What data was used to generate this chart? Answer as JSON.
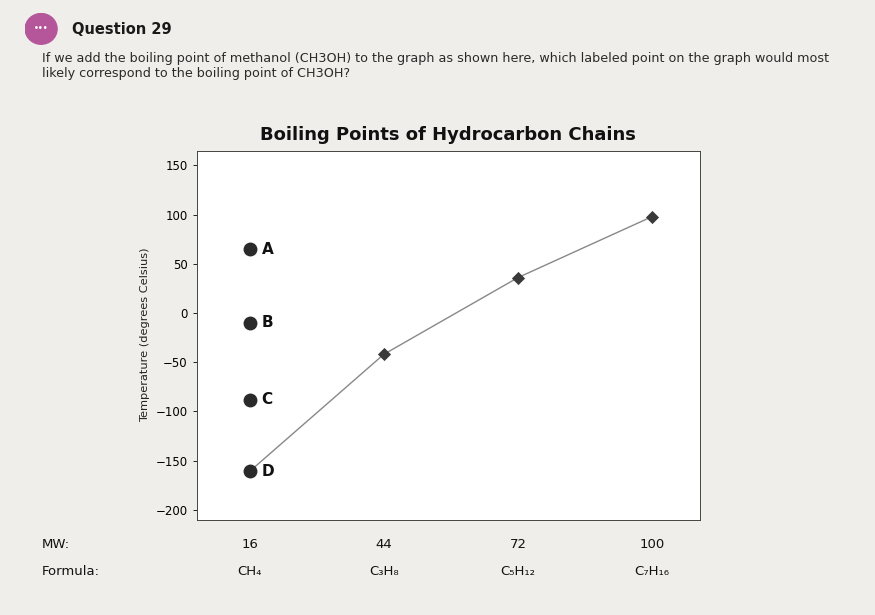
{
  "title": "Boiling Points of Hydrocarbon Chains",
  "ylabel": "Temperature (degrees Celsius)",
  "question_text": "Question 29",
  "question_body": "If we add the boiling point of methanol (CH3OH) to the graph as shown here, which labeled point on the graph would most\nlikely correspond to the boiling point of CH3OH?",
  "mw_labels": [
    "16",
    "44",
    "72",
    "100"
  ],
  "formula_labels": [
    "CH₄",
    "C₃H₈",
    "C₅H₁₂",
    "C₇H₁₆"
  ],
  "mw_values": [
    16,
    44,
    72,
    100
  ],
  "trend_temps": [
    -161,
    -42,
    36,
    98
  ],
  "labeled_points": {
    "A": {
      "mw": 16,
      "temp": 65
    },
    "B": {
      "mw": 16,
      "temp": -10
    },
    "C": {
      "mw": 16,
      "temp": -88
    },
    "D": {
      "mw": 16,
      "temp": -161
    }
  },
  "ylim": [
    -210,
    165
  ],
  "yticks": [
    -200,
    -150,
    -100,
    -50,
    0,
    50,
    100,
    150
  ],
  "background_color": "#f0eeea",
  "plot_bg_color": "#ffffff",
  "dot_color": "#2a2a2a",
  "diamond_color": "#3a3a3a",
  "line_color": "#888888",
  "label_fontsize": 11,
  "title_fontsize": 13,
  "dot_size": 100,
  "diamond_size": 45
}
